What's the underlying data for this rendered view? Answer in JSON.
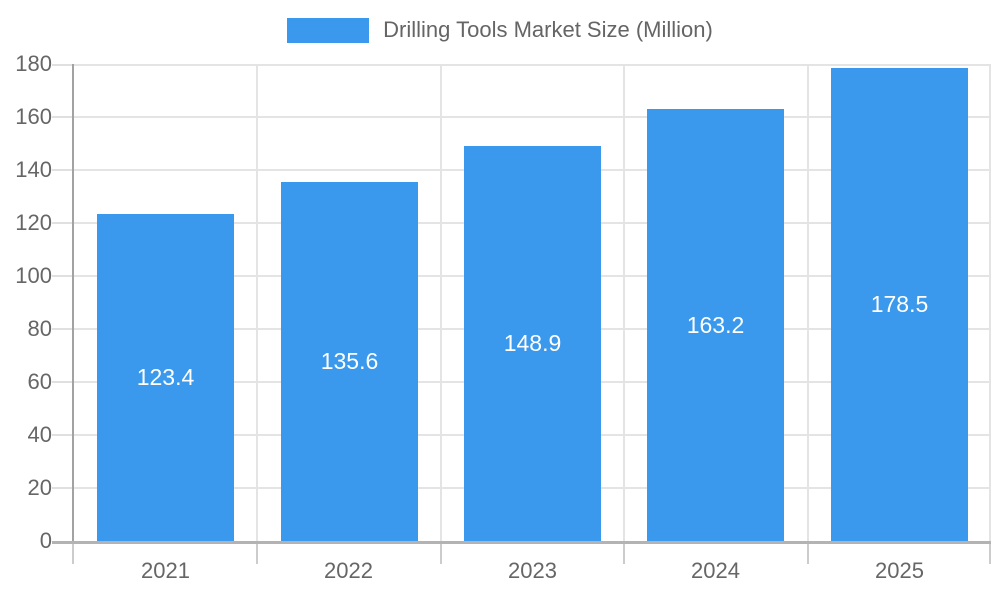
{
  "chart_data": {
    "type": "bar",
    "title": "Drilling Tools Market Size (Million)",
    "categories": [
      "2021",
      "2022",
      "2023",
      "2024",
      "2025"
    ],
    "values": [
      123.4,
      135.6,
      148.9,
      163.2,
      178.5
    ],
    "value_labels": [
      "123.4",
      "135.6",
      "148.9",
      "163.2",
      "178.5"
    ],
    "xlabel": "",
    "ylabel": "",
    "ylim": [
      0,
      180
    ],
    "y_ticks": [
      0,
      20,
      40,
      60,
      80,
      100,
      120,
      140,
      160,
      180
    ],
    "grid": true,
    "legend_position": "top-center",
    "colors": {
      "bar": "#3a99ec",
      "value_label": "#ffffff",
      "axis_text": "#666666",
      "legend_text": "#656565",
      "gridline": "#e4e4e4",
      "y_tick": "#e0e0e0",
      "x_tick": "#cccccc",
      "y_axis_line": "#a2a2a2",
      "x_axis_line": "#b3b3b3"
    }
  }
}
